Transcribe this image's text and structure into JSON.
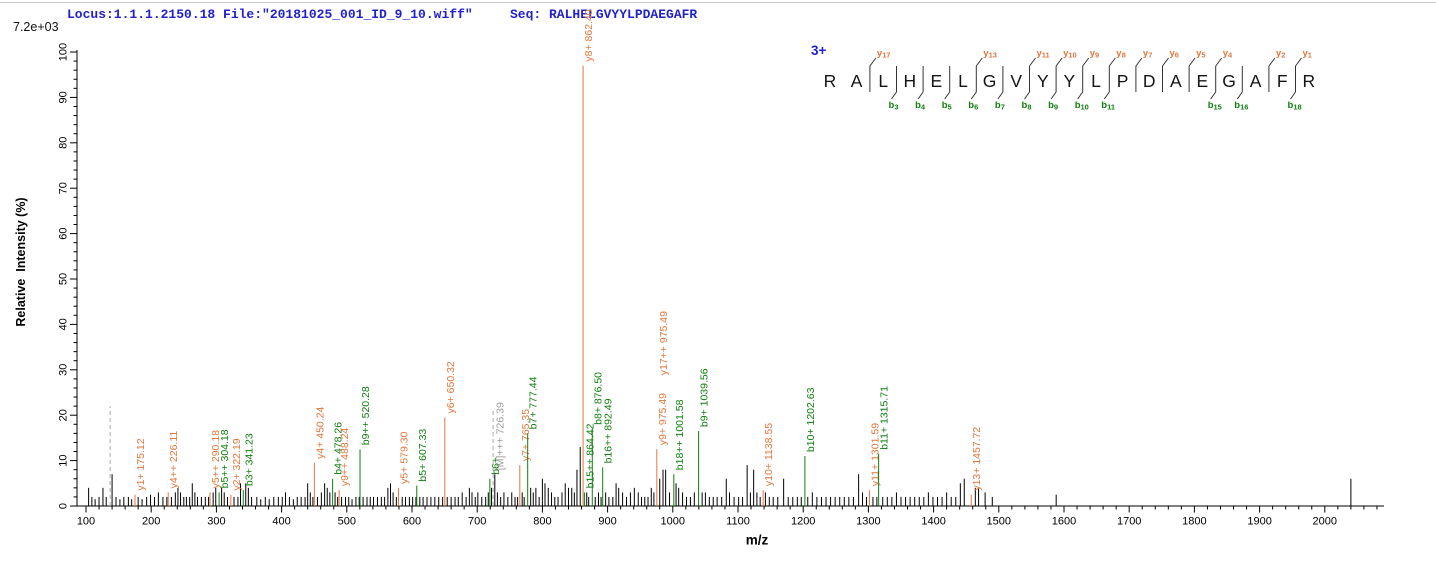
{
  "header": {
    "locus_file": "Locus:1.1.1.2150.18 File:\"20181025_001_ID_9_10.wiff\"",
    "seq_line": "Seq: RALHELGVYYLPDAEGAFR",
    "intensity_scale": "7.2e+03"
  },
  "sequence_map": {
    "charge": "3+",
    "residues": [
      "R",
      "A",
      "L",
      "H",
      "E",
      "L",
      "G",
      "V",
      "Y",
      "Y",
      "L",
      "P",
      "D",
      "A",
      "E",
      "G",
      "A",
      "F",
      "R"
    ],
    "y_ions": [
      {
        "sub": "17",
        "after": 2
      },
      {
        "sub": "13",
        "after": 6
      },
      {
        "sub": "11",
        "after": 8
      },
      {
        "sub": "10",
        "after": 9
      },
      {
        "sub": "9",
        "after": 10
      },
      {
        "sub": "8",
        "after": 11
      },
      {
        "sub": "7",
        "after": 12
      },
      {
        "sub": "6",
        "after": 13
      },
      {
        "sub": "5",
        "after": 14
      },
      {
        "sub": "4",
        "after": 15
      },
      {
        "sub": "2",
        "after": 17
      },
      {
        "sub": "1",
        "after": 18
      }
    ],
    "b_ions": [
      {
        "sub": "3",
        "after": 3
      },
      {
        "sub": "4",
        "after": 4
      },
      {
        "sub": "5",
        "after": 5
      },
      {
        "sub": "6",
        "after": 6
      },
      {
        "sub": "7",
        "after": 7
      },
      {
        "sub": "8",
        "after": 8
      },
      {
        "sub": "9",
        "after": 9
      },
      {
        "sub": "10",
        "after": 10
      },
      {
        "sub": "11",
        "after": 11
      },
      {
        "sub": "15",
        "after": 15
      },
      {
        "sub": "16",
        "after": 16
      },
      {
        "sub": "18",
        "after": 18
      }
    ]
  },
  "colors": {
    "y_ion": "#E2763B",
    "b_ion": "#0E7F0E",
    "precursor_label": "#9B9B9B",
    "marker_dash": "#ABABAB",
    "peak": "#000000",
    "axis": "#000000",
    "header_text": "#2222CC"
  },
  "chart_data": {
    "type": "bar",
    "subtype": "ms2-fragment-stick-spectrum",
    "title": "",
    "xlabel": "m/z",
    "ylabel": "Relative  Intensity (%)",
    "xlim": [
      100,
      2080
    ],
    "ylim": [
      0,
      100
    ],
    "x_ticks": [
      100,
      200,
      300,
      400,
      500,
      600,
      700,
      800,
      900,
      1000,
      1100,
      1200,
      1300,
      1400,
      1500,
      1600,
      1700,
      1800,
      1900,
      2000
    ],
    "x_minor_step": 20,
    "y_ticks": [
      0,
      10,
      20,
      30,
      40,
      50,
      60,
      70,
      80,
      90,
      100
    ],
    "y_minor_step": 2,
    "grid": false,
    "labeled_peaks": [
      {
        "ion": "y",
        "label": "y1+ 175.12",
        "mz": 175.12,
        "intensity": 2.5
      },
      {
        "ion": "y",
        "label": "y4++ 226.11",
        "mz": 226.11,
        "intensity": 3
      },
      {
        "ion": "y",
        "label": "y5++ 290.18",
        "mz": 290.18,
        "intensity": 3
      },
      {
        "ion": "b",
        "label": "b5++ 304.18",
        "mz": 304.18,
        "intensity": 3
      },
      {
        "ion": "y",
        "label": "y2+ 322.19",
        "mz": 322.19,
        "intensity": 2.5
      },
      {
        "ion": "b",
        "label": "b3+ 341.23",
        "mz": 341.23,
        "intensity": 3.5
      },
      {
        "ion": "y",
        "label": "y4+ 450.24",
        "mz": 450.24,
        "intensity": 9.5
      },
      {
        "ion": "b",
        "label": "b4+ 478.26",
        "mz": 478.26,
        "intensity": 6
      },
      {
        "ion": "y",
        "label": "y9++ 488.24",
        "mz": 488.24,
        "intensity": 3.5
      },
      {
        "ion": "b",
        "label": "b9++ 520.28",
        "mz": 520.28,
        "intensity": 12.5
      },
      {
        "ion": "y",
        "label": "y5+ 579.30",
        "mz": 579.3,
        "intensity": 4
      },
      {
        "ion": "b",
        "label": "b5+ 607.33",
        "mz": 607.33,
        "intensity": 4.5
      },
      {
        "ion": "y",
        "label": "y6+ 650.32",
        "mz": 650.32,
        "intensity": 19.5
      },
      {
        "ion": "b",
        "label": "b6+",
        "mz": 719.4,
        "intensity": 6
      },
      {
        "ion": "precursor",
        "label": "[M]+++ 726.39",
        "mz": 726.39,
        "intensity": 7
      },
      {
        "ion": "y",
        "label": "y7+ 765.35",
        "mz": 765.35,
        "intensity": 9
      },
      {
        "ion": "b",
        "label": "b7+ 777.44",
        "mz": 777.44,
        "intensity": 16
      },
      {
        "ion": "y",
        "label": "y8+ 862.40",
        "mz": 862.4,
        "intensity": 97
      },
      {
        "ion": "b",
        "label": "b15++ 864.42",
        "mz": 864.42,
        "intensity": 3
      },
      {
        "ion": "b",
        "label": "b8+ 876.50",
        "mz": 876.5,
        "intensity": 17
      },
      {
        "ion": "b",
        "label": "b16++ 892.49",
        "mz": 892.49,
        "intensity": 8.5
      },
      {
        "ion": "y",
        "label": "y9+ 975.49",
        "label2": "y17++ 975.49",
        "mz": 975.49,
        "intensity": 12.5
      },
      {
        "ion": "b",
        "label": "b18++ 1001.58",
        "mz": 1001.58,
        "intensity": 7
      },
      {
        "ion": "b",
        "label": "b9+ 1039.56",
        "mz": 1039.56,
        "intensity": 16.5
      },
      {
        "ion": "y",
        "label": "y10+ 1138.55",
        "mz": 1138.55,
        "intensity": 3.5
      },
      {
        "ion": "b",
        "label": "b10+ 1202.63",
        "mz": 1202.63,
        "intensity": 11
      },
      {
        "ion": "y",
        "label": "y11+ 1301.59",
        "mz": 1301.59,
        "intensity": 3.5
      },
      {
        "ion": "b",
        "label": "b11+ 1315.71",
        "mz": 1315.71,
        "intensity": 11.5
      },
      {
        "ion": "y",
        "label": "y13+ 1457.72",
        "mz": 1457.72,
        "intensity": 2.5
      }
    ],
    "markers": [
      {
        "mz": 137.0,
        "top": 22,
        "style": "dashed"
      },
      {
        "mz": 724.4,
        "top": 21,
        "style": "dashed"
      }
    ],
    "noise_peaks": [
      [
        104,
        4
      ],
      [
        109,
        2
      ],
      [
        114,
        1.5
      ],
      [
        120,
        2
      ],
      [
        126,
        4
      ],
      [
        131,
        2
      ],
      [
        140,
        7
      ],
      [
        146,
        2
      ],
      [
        152,
        1.5
      ],
      [
        158,
        2
      ],
      [
        165,
        2
      ],
      [
        170,
        1.5
      ],
      [
        180,
        2
      ],
      [
        186,
        1.5
      ],
      [
        193,
        2
      ],
      [
        199,
        2.5
      ],
      [
        205,
        2
      ],
      [
        211,
        3
      ],
      [
        218,
        2
      ],
      [
        224,
        2
      ],
      [
        231,
        2
      ],
      [
        237,
        3
      ],
      [
        241,
        4
      ],
      [
        245,
        3
      ],
      [
        250,
        2
      ],
      [
        254,
        2
      ],
      [
        259,
        2
      ],
      [
        263,
        5
      ],
      [
        267,
        3
      ],
      [
        271,
        2
      ],
      [
        277,
        2
      ],
      [
        283,
        2
      ],
      [
        288,
        2
      ],
      [
        295,
        3
      ],
      [
        299,
        4
      ],
      [
        308,
        4
      ],
      [
        312,
        3
      ],
      [
        317,
        2
      ],
      [
        327,
        2
      ],
      [
        333,
        2
      ],
      [
        337,
        5
      ],
      [
        345,
        5
      ],
      [
        349,
        4
      ],
      [
        354,
        2
      ],
      [
        362,
        2
      ],
      [
        368,
        1.5
      ],
      [
        375,
        2
      ],
      [
        381,
        1.5
      ],
      [
        388,
        2
      ],
      [
        395,
        2
      ],
      [
        401,
        2
      ],
      [
        406,
        3
      ],
      [
        412,
        2
      ],
      [
        418,
        1.5
      ],
      [
        424,
        2
      ],
      [
        430,
        2
      ],
      [
        436,
        2
      ],
      [
        440,
        5
      ],
      [
        444,
        3
      ],
      [
        448,
        2
      ],
      [
        455,
        2
      ],
      [
        461,
        3
      ],
      [
        466,
        5
      ],
      [
        470,
        4
      ],
      [
        474,
        3
      ],
      [
        482,
        3
      ],
      [
        486,
        2
      ],
      [
        492,
        2
      ],
      [
        498,
        2
      ],
      [
        503,
        2
      ],
      [
        508,
        1.5
      ],
      [
        514,
        2
      ],
      [
        519,
        2
      ],
      [
        525,
        2
      ],
      [
        531,
        2
      ],
      [
        536,
        2
      ],
      [
        541,
        2
      ],
      [
        547,
        2
      ],
      [
        553,
        2
      ],
      [
        558,
        2
      ],
      [
        563,
        4
      ],
      [
        567,
        5
      ],
      [
        571,
        3
      ],
      [
        576,
        2
      ],
      [
        585,
        2
      ],
      [
        590,
        2
      ],
      [
        596,
        2
      ],
      [
        601,
        2
      ],
      [
        606,
        2
      ],
      [
        612,
        2
      ],
      [
        617,
        2
      ],
      [
        623,
        2
      ],
      [
        629,
        2
      ],
      [
        635,
        2
      ],
      [
        641,
        2
      ],
      [
        647,
        2
      ],
      [
        654,
        2
      ],
      [
        660,
        2
      ],
      [
        666,
        2
      ],
      [
        671,
        2
      ],
      [
        677,
        3
      ],
      [
        683,
        2
      ],
      [
        688,
        4
      ],
      [
        692,
        3
      ],
      [
        697,
        2
      ],
      [
        701,
        3
      ],
      [
        707,
        2
      ],
      [
        713,
        2
      ],
      [
        717,
        3
      ],
      [
        722,
        4
      ],
      [
        727,
        7
      ],
      [
        731,
        3
      ],
      [
        736,
        2
      ],
      [
        741,
        3
      ],
      [
        747,
        2
      ],
      [
        753,
        3
      ],
      [
        758,
        2
      ],
      [
        762,
        2
      ],
      [
        769,
        3
      ],
      [
        772,
        2
      ],
      [
        782,
        4
      ],
      [
        786,
        3
      ],
      [
        790,
        4
      ],
      [
        795,
        2
      ],
      [
        800,
        6
      ],
      [
        804,
        5
      ],
      [
        809,
        4
      ],
      [
        814,
        3
      ],
      [
        819,
        2
      ],
      [
        824,
        2
      ],
      [
        830,
        3
      ],
      [
        835,
        5
      ],
      [
        840,
        4
      ],
      [
        845,
        4
      ],
      [
        849,
        3
      ],
      [
        853,
        8
      ],
      [
        858,
        13
      ],
      [
        868,
        3
      ],
      [
        871,
        2
      ],
      [
        881,
        2
      ],
      [
        886,
        3
      ],
      [
        890,
        2
      ],
      [
        897,
        3
      ],
      [
        902,
        2
      ],
      [
        908,
        2
      ],
      [
        913,
        5
      ],
      [
        917,
        4
      ],
      [
        923,
        3
      ],
      [
        929,
        2
      ],
      [
        935,
        3
      ],
      [
        941,
        4
      ],
      [
        947,
        3
      ],
      [
        952,
        2
      ],
      [
        957,
        2
      ],
      [
        962,
        2
      ],
      [
        967,
        4
      ],
      [
        971,
        3
      ],
      [
        980,
        6
      ],
      [
        985,
        8
      ],
      [
        989,
        8
      ],
      [
        995,
        3
      ],
      [
        1005,
        5
      ],
      [
        1009,
        4
      ],
      [
        1015,
        3
      ],
      [
        1021,
        2
      ],
      [
        1027,
        2
      ],
      [
        1033,
        3
      ],
      [
        1045,
        3
      ],
      [
        1050,
        3
      ],
      [
        1056,
        2
      ],
      [
        1062,
        2
      ],
      [
        1068,
        2
      ],
      [
        1075,
        2
      ],
      [
        1082,
        6
      ],
      [
        1087,
        3
      ],
      [
        1094,
        2
      ],
      [
        1101,
        2
      ],
      [
        1107,
        2
      ],
      [
        1114,
        9
      ],
      [
        1119,
        3
      ],
      [
        1124,
        8
      ],
      [
        1129,
        3
      ],
      [
        1134,
        2
      ],
      [
        1142,
        3
      ],
      [
        1148,
        2
      ],
      [
        1154,
        2
      ],
      [
        1161,
        2
      ],
      [
        1170,
        6
      ],
      [
        1177,
        2
      ],
      [
        1184,
        2
      ],
      [
        1191,
        2
      ],
      [
        1197,
        2
      ],
      [
        1207,
        2
      ],
      [
        1214,
        3
      ],
      [
        1221,
        2
      ],
      [
        1228,
        2
      ],
      [
        1235,
        2
      ],
      [
        1242,
        2
      ],
      [
        1249,
        2
      ],
      [
        1256,
        2
      ],
      [
        1263,
        2
      ],
      [
        1270,
        2
      ],
      [
        1277,
        2
      ],
      [
        1285,
        7
      ],
      [
        1291,
        3
      ],
      [
        1297,
        2
      ],
      [
        1307,
        2
      ],
      [
        1313,
        2
      ],
      [
        1322,
        2
      ],
      [
        1329,
        2
      ],
      [
        1336,
        2
      ],
      [
        1343,
        3
      ],
      [
        1350,
        2
      ],
      [
        1357,
        2
      ],
      [
        1364,
        2
      ],
      [
        1371,
        2
      ],
      [
        1378,
        2
      ],
      [
        1385,
        2
      ],
      [
        1392,
        3
      ],
      [
        1399,
        2
      ],
      [
        1406,
        2
      ],
      [
        1413,
        2
      ],
      [
        1420,
        3
      ],
      [
        1427,
        2
      ],
      [
        1434,
        2
      ],
      [
        1441,
        5
      ],
      [
        1447,
        6
      ],
      [
        1464,
        4
      ],
      [
        1469,
        4
      ],
      [
        1479,
        3
      ],
      [
        1490,
        2
      ],
      [
        1588,
        2.5
      ],
      [
        2040,
        6
      ]
    ]
  }
}
